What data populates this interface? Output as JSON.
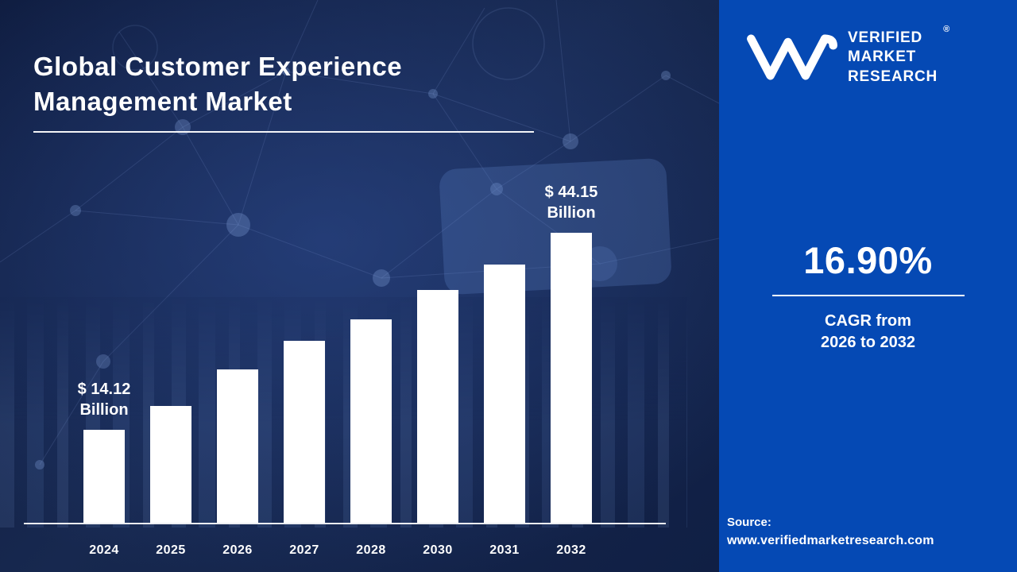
{
  "theme": {
    "left_background": "#14244e",
    "panel_background": "#0549b4",
    "bar_color": "#ffffff",
    "text_color": "#ffffff"
  },
  "title": {
    "line1": "Global Customer Experience",
    "line2": "Management  Market"
  },
  "chart_data": {
    "type": "bar",
    "title": "Global Customer Experience Management Market",
    "categories": [
      "2024",
      "2025",
      "2026",
      "2027",
      "2028",
      "2030",
      "2031",
      "2032"
    ],
    "values": [
      14.12,
      17.8,
      23.3,
      27.7,
      31.0,
      35.4,
      39.3,
      44.15
    ],
    "unit": "USD Billion",
    "ylim": [
      0,
      44.15
    ],
    "grid": false,
    "legend": "none",
    "bar_color": "#ffffff",
    "annotations": [
      {
        "category": "2024",
        "line1": "$ 14.12",
        "line2": "Billion"
      },
      {
        "category": "2032",
        "line1": "$ 44.15",
        "line2": "Billion"
      }
    ]
  },
  "brand": {
    "logo_icon": "vmr-monogram",
    "name_lines": [
      "VERIFIED",
      "MARKET",
      "RESEARCH"
    ],
    "registered_mark": "®"
  },
  "stats": {
    "cagr_value": "16.90%",
    "cagr_label_line1": "CAGR from",
    "cagr_label_line2": "2026 to 2032"
  },
  "source": {
    "label": "Source:",
    "url": "www.verifiedmarketresearch.com"
  }
}
